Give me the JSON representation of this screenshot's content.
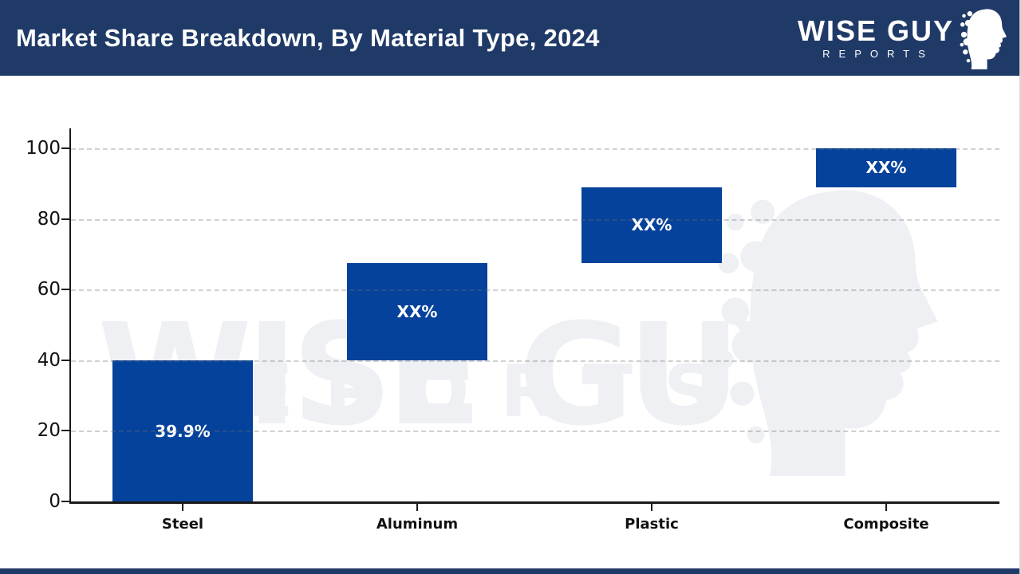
{
  "header": {
    "title": "Market Share Breakdown, By Material Type, 2024",
    "logo": {
      "line1": "WISE GUY",
      "line2": "REPORTS"
    }
  },
  "watermark": {
    "line1": "WISE GUY",
    "line2": "REPORTS"
  },
  "chart_data": {
    "type": "bar",
    "subtype": "waterfall",
    "title": "Market Share Breakdown, By Material Type, 2024",
    "categories": [
      "Steel",
      "Aluminum",
      "Plastic",
      "Composite"
    ],
    "segments": [
      {
        "category": "Steel",
        "start": 0,
        "end": 39.9,
        "label": "39.9%"
      },
      {
        "category": "Aluminum",
        "start": 39.9,
        "end": 67.5,
        "label": "XX%"
      },
      {
        "category": "Plastic",
        "start": 67.5,
        "end": 89,
        "label": "XX%"
      },
      {
        "category": "Composite",
        "start": 89,
        "end": 100,
        "label": "XX%"
      }
    ],
    "xlabel": "",
    "ylabel": "",
    "yticks": [
      0,
      20,
      40,
      60,
      80,
      100
    ],
    "ylim": [
      0,
      105
    ],
    "grid": "horizontal-dashed",
    "bar_color": "#05429c",
    "bar_label_color": "#ffffff",
    "legend": "none"
  }
}
